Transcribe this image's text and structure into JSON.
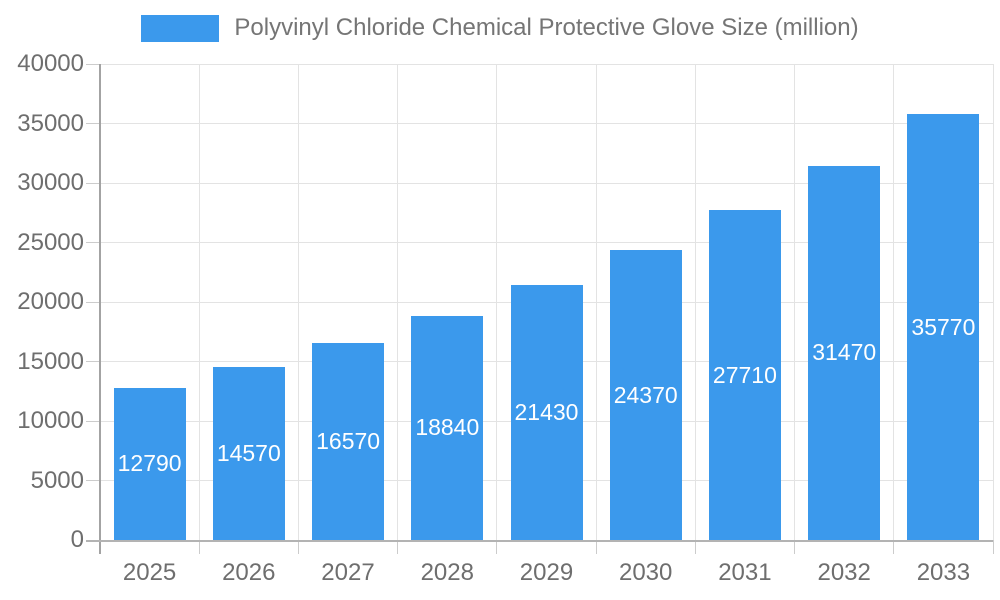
{
  "legend": {
    "label": "Polyvinyl Chloride Chemical Protective Glove Size (million)"
  },
  "chart_data": {
    "type": "bar",
    "title": "",
    "xlabel": "",
    "ylabel": "",
    "categories": [
      "2025",
      "2026",
      "2027",
      "2028",
      "2029",
      "2030",
      "2031",
      "2032",
      "2033"
    ],
    "values": [
      12790,
      14570,
      16570,
      18840,
      21430,
      24370,
      27710,
      31470,
      35770
    ],
    "series_name": "Polyvinyl Chloride Chemical Protective Glove Size (million)",
    "ylim": [
      0,
      40000
    ],
    "y_tick_interval": 5000,
    "y_tick_labels": [
      "0",
      "5000",
      "10000",
      "15000",
      "20000",
      "25000",
      "30000",
      "35000",
      "40000"
    ],
    "grid": true,
    "legend_position": "top",
    "bar_color": "#3b99ec",
    "value_label_color": "#ffffff",
    "value_labels_inside": true
  },
  "colors": {
    "bar": "#3b99ec",
    "grid_line": "#e3e3e3",
    "tick": "#cccccc",
    "y_axis_line": "#a3a3a3",
    "x_axis_line": "#b3b3b3",
    "axis_label_text": "#6e6e6e",
    "legend_text": "#757575",
    "background": "#ffffff"
  }
}
